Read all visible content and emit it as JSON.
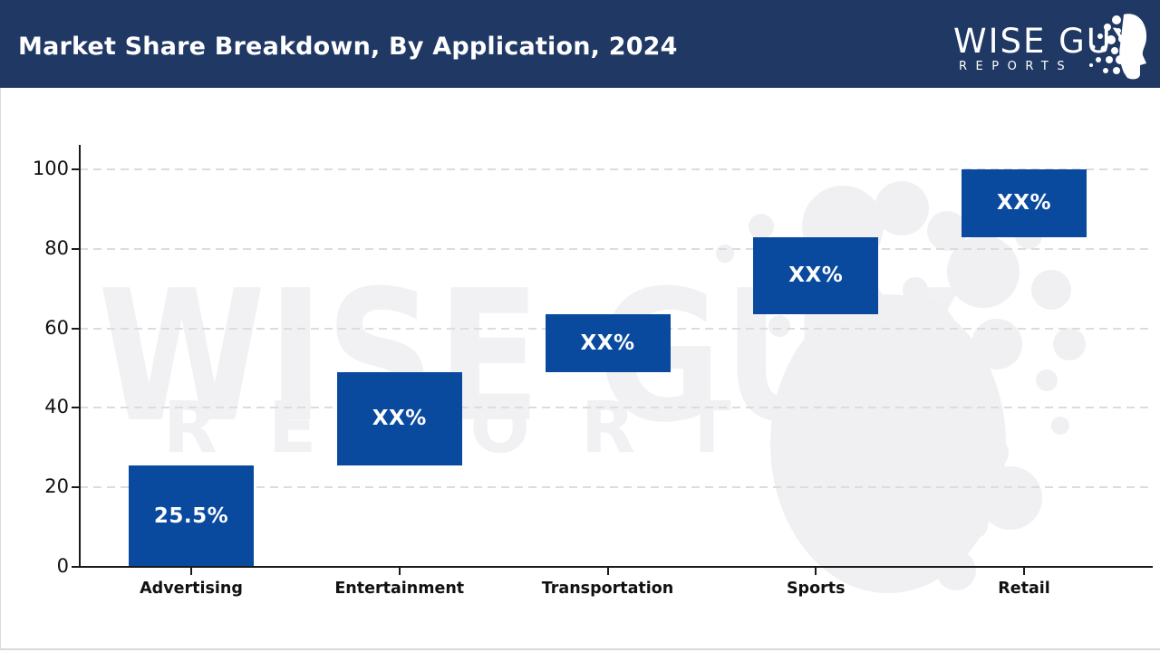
{
  "header": {
    "title": "Market Share Breakdown, By Application, 2024",
    "logo": {
      "line1": "WISE GUY",
      "line2": "REPORTS"
    }
  },
  "watermark": {
    "line1": "WISE GUY",
    "line2": "REPORTS"
  },
  "colors": {
    "header_bg": "#1f3864",
    "bar": "#0a4a9e",
    "grid": "#dcdcdc",
    "axis": "#1a1a1a",
    "bar_label_text": "#ffffff",
    "watermark": "#f1f1f4"
  },
  "chart_data": {
    "type": "bar",
    "subtype": "waterfall",
    "title": "Market Share Breakdown, By Application, 2024",
    "categories": [
      "Advertising",
      "Entertainment",
      "Transportation",
      "Sports",
      "Retail"
    ],
    "values": [
      25.5,
      23.5,
      14.5,
      19.5,
      17
    ],
    "segments": [
      {
        "category": "Advertising",
        "start": 0,
        "end": 25.5,
        "label": "25.5%"
      },
      {
        "category": "Entertainment",
        "start": 25.5,
        "end": 49,
        "label": "XX%"
      },
      {
        "category": "Transportation",
        "start": 49,
        "end": 63.5,
        "label": "XX%"
      },
      {
        "category": "Sports",
        "start": 63.5,
        "end": 83,
        "label": "XX%"
      },
      {
        "category": "Retail",
        "start": 83,
        "end": 100,
        "label": "XX%"
      }
    ],
    "xlabel": "",
    "ylabel": "",
    "ylim": [
      0,
      100
    ],
    "yticks": [
      0,
      20,
      40,
      60,
      80,
      100
    ],
    "grid": true,
    "grid_style": "dashed",
    "legend": null,
    "bar_color": "#0a4a9e",
    "value_label_color": "#ffffff"
  }
}
